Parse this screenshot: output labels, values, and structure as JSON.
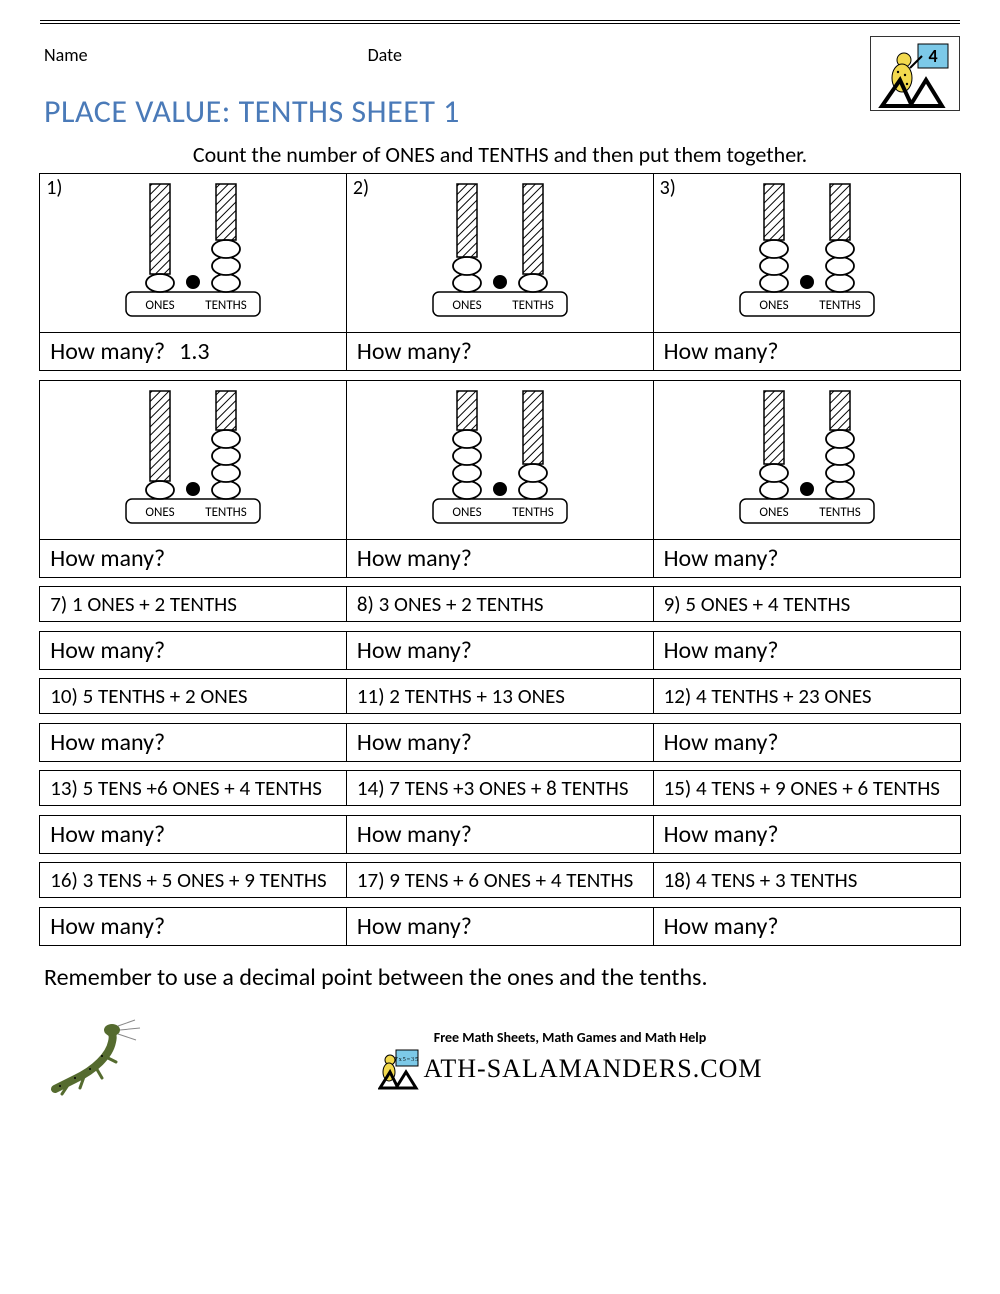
{
  "header": {
    "name_label": "Name",
    "date_label": "Date",
    "grade_badge": "4"
  },
  "title": "PLACE VALUE: TENTHS SHEET 1",
  "instruction": "Count the number of ONES and TENTHS and then put them together.",
  "labels": {
    "ones": "ONES",
    "tenths": "TENTHS",
    "how_many": "How many?"
  },
  "colors": {
    "title": "#4a7ab8",
    "border": "#000000",
    "bead_stroke": "#000000",
    "bead_fill": "#ffffff",
    "dot_fill": "#000000",
    "hatch": "#000000"
  },
  "abacus_style": {
    "bead_rx": 14,
    "bead_ry": 9,
    "rod_width": 20,
    "rod_height": 60,
    "dot_r": 7,
    "base_height": 24,
    "base_radius": 6
  },
  "abacus_problems": [
    {
      "num": "1)",
      "ones": 1,
      "tenths": 3,
      "answer": "1.3"
    },
    {
      "num": "2)",
      "ones": 2,
      "tenths": 1,
      "answer": ""
    },
    {
      "num": "3)",
      "ones": 3,
      "tenths": 3,
      "answer": ""
    },
    {
      "num": "",
      "ones": 1,
      "tenths": 4,
      "answer": ""
    },
    {
      "num": "",
      "ones": 4,
      "tenths": 2,
      "answer": ""
    },
    {
      "num": "",
      "ones": 2,
      "tenths": 4,
      "answer": ""
    }
  ],
  "text_problems": [
    [
      {
        "q": "7) 1 ONES + 2 TENTHS"
      },
      {
        "q": "8) 3 ONES + 2 TENTHS"
      },
      {
        "q": "9) 5 ONES + 4 TENTHS"
      }
    ],
    [
      {
        "q": "10) 5 TENTHS + 2 ONES"
      },
      {
        "q": "11) 2 TENTHS + 13 ONES"
      },
      {
        "q": "12) 4 TENTHS + 23 ONES"
      }
    ],
    [
      {
        "q": "13) 5 TENS +6 ONES + 4 TENTHS"
      },
      {
        "q": "14) 7 TENS +3 ONES + 8 TENTHS"
      },
      {
        "q": "15) 4 TENS + 9 ONES + 6 TENTHS"
      }
    ],
    [
      {
        "q": "16) 3 TENS + 5 ONES + 9 TENTHS"
      },
      {
        "q": "17) 9 TENS + 6 ONES + 4 TENTHS"
      },
      {
        "q": "18) 4 TENS + 3 TENTHS"
      }
    ]
  ],
  "reminder": "Remember to use a decimal point between the ones and the tenths.",
  "footer": {
    "tagline": "Free Math Sheets, Math Games and Math Help",
    "brand": "ATH-SALAMANDERS.COM"
  }
}
